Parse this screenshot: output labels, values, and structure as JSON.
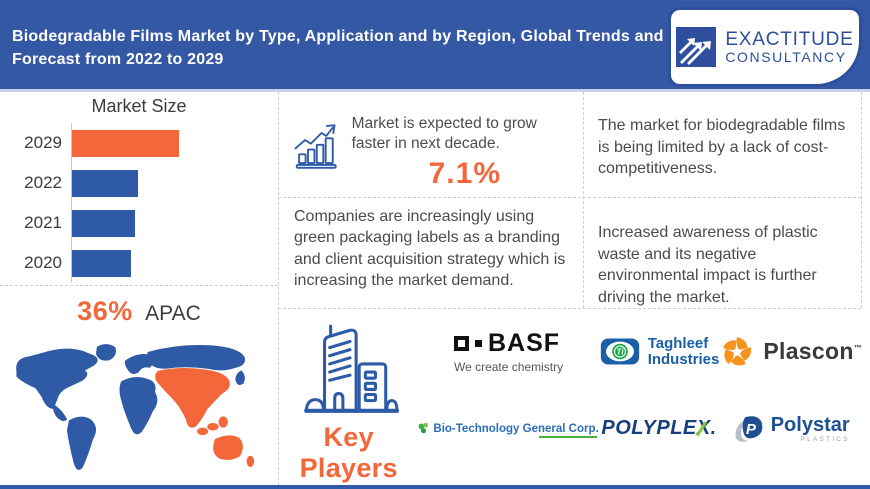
{
  "header": {
    "title": "Biodegradable Films Market by Type, Application and by Region, Global Trends and Forecast from 2022 to 2029",
    "logo": {
      "line1": "EXACTITUDE",
      "line2": "CONSULTANCY"
    }
  },
  "chart_data": {
    "type": "bar",
    "orientation": "horizontal",
    "title": "Market Size",
    "categories": [
      "2029",
      "2022",
      "2021",
      "2020"
    ],
    "values": [
      80,
      49,
      47,
      44
    ],
    "value_note": "relative bar lengths; no numeric axis shown",
    "bar_colors": [
      "#F4673A",
      "#2E5AA6",
      "#2E5AA6",
      "#2E5AA6"
    ],
    "xlabel": "",
    "ylabel": "",
    "grid": false,
    "legend": false
  },
  "region_highlight": {
    "value": "36%",
    "label": "APAC"
  },
  "growth_callout": {
    "icon": "growth-bar-chart-icon",
    "text": "Market is expected to grow faster in next decade.",
    "value": "7.1%"
  },
  "insights": {
    "restraint": "The market for biodegradable films is being limited by a lack of cost-competitiveness.",
    "strategy": "Companies are increasingly using green packaging labels as a branding and client acquisition strategy which is increasing the market demand.",
    "driver": "Increased awareness of plastic waste and its negative environmental impact is further driving the market."
  },
  "key_players": {
    "heading": "Key Players",
    "companies": [
      {
        "name": "BASF",
        "tagline": "We create chemistry"
      },
      {
        "name": "Taghleef Industries",
        "name_line1": "Taghleef",
        "name_line2": "Industries",
        "icon_text": "Ti"
      },
      {
        "name": "Plascon",
        "trademark": "TM"
      },
      {
        "name": "Bio-Technology General Corp."
      },
      {
        "name": "POLYPLEX."
      },
      {
        "name": "Polystar",
        "tagline": "PLASTICS"
      }
    ]
  },
  "colors": {
    "header_bg": "#3458A4",
    "primary_blue": "#2E5AA6",
    "accent_orange": "#F4673A",
    "text_dark": "#4B4B4B",
    "divider": "#CFCFCF"
  }
}
